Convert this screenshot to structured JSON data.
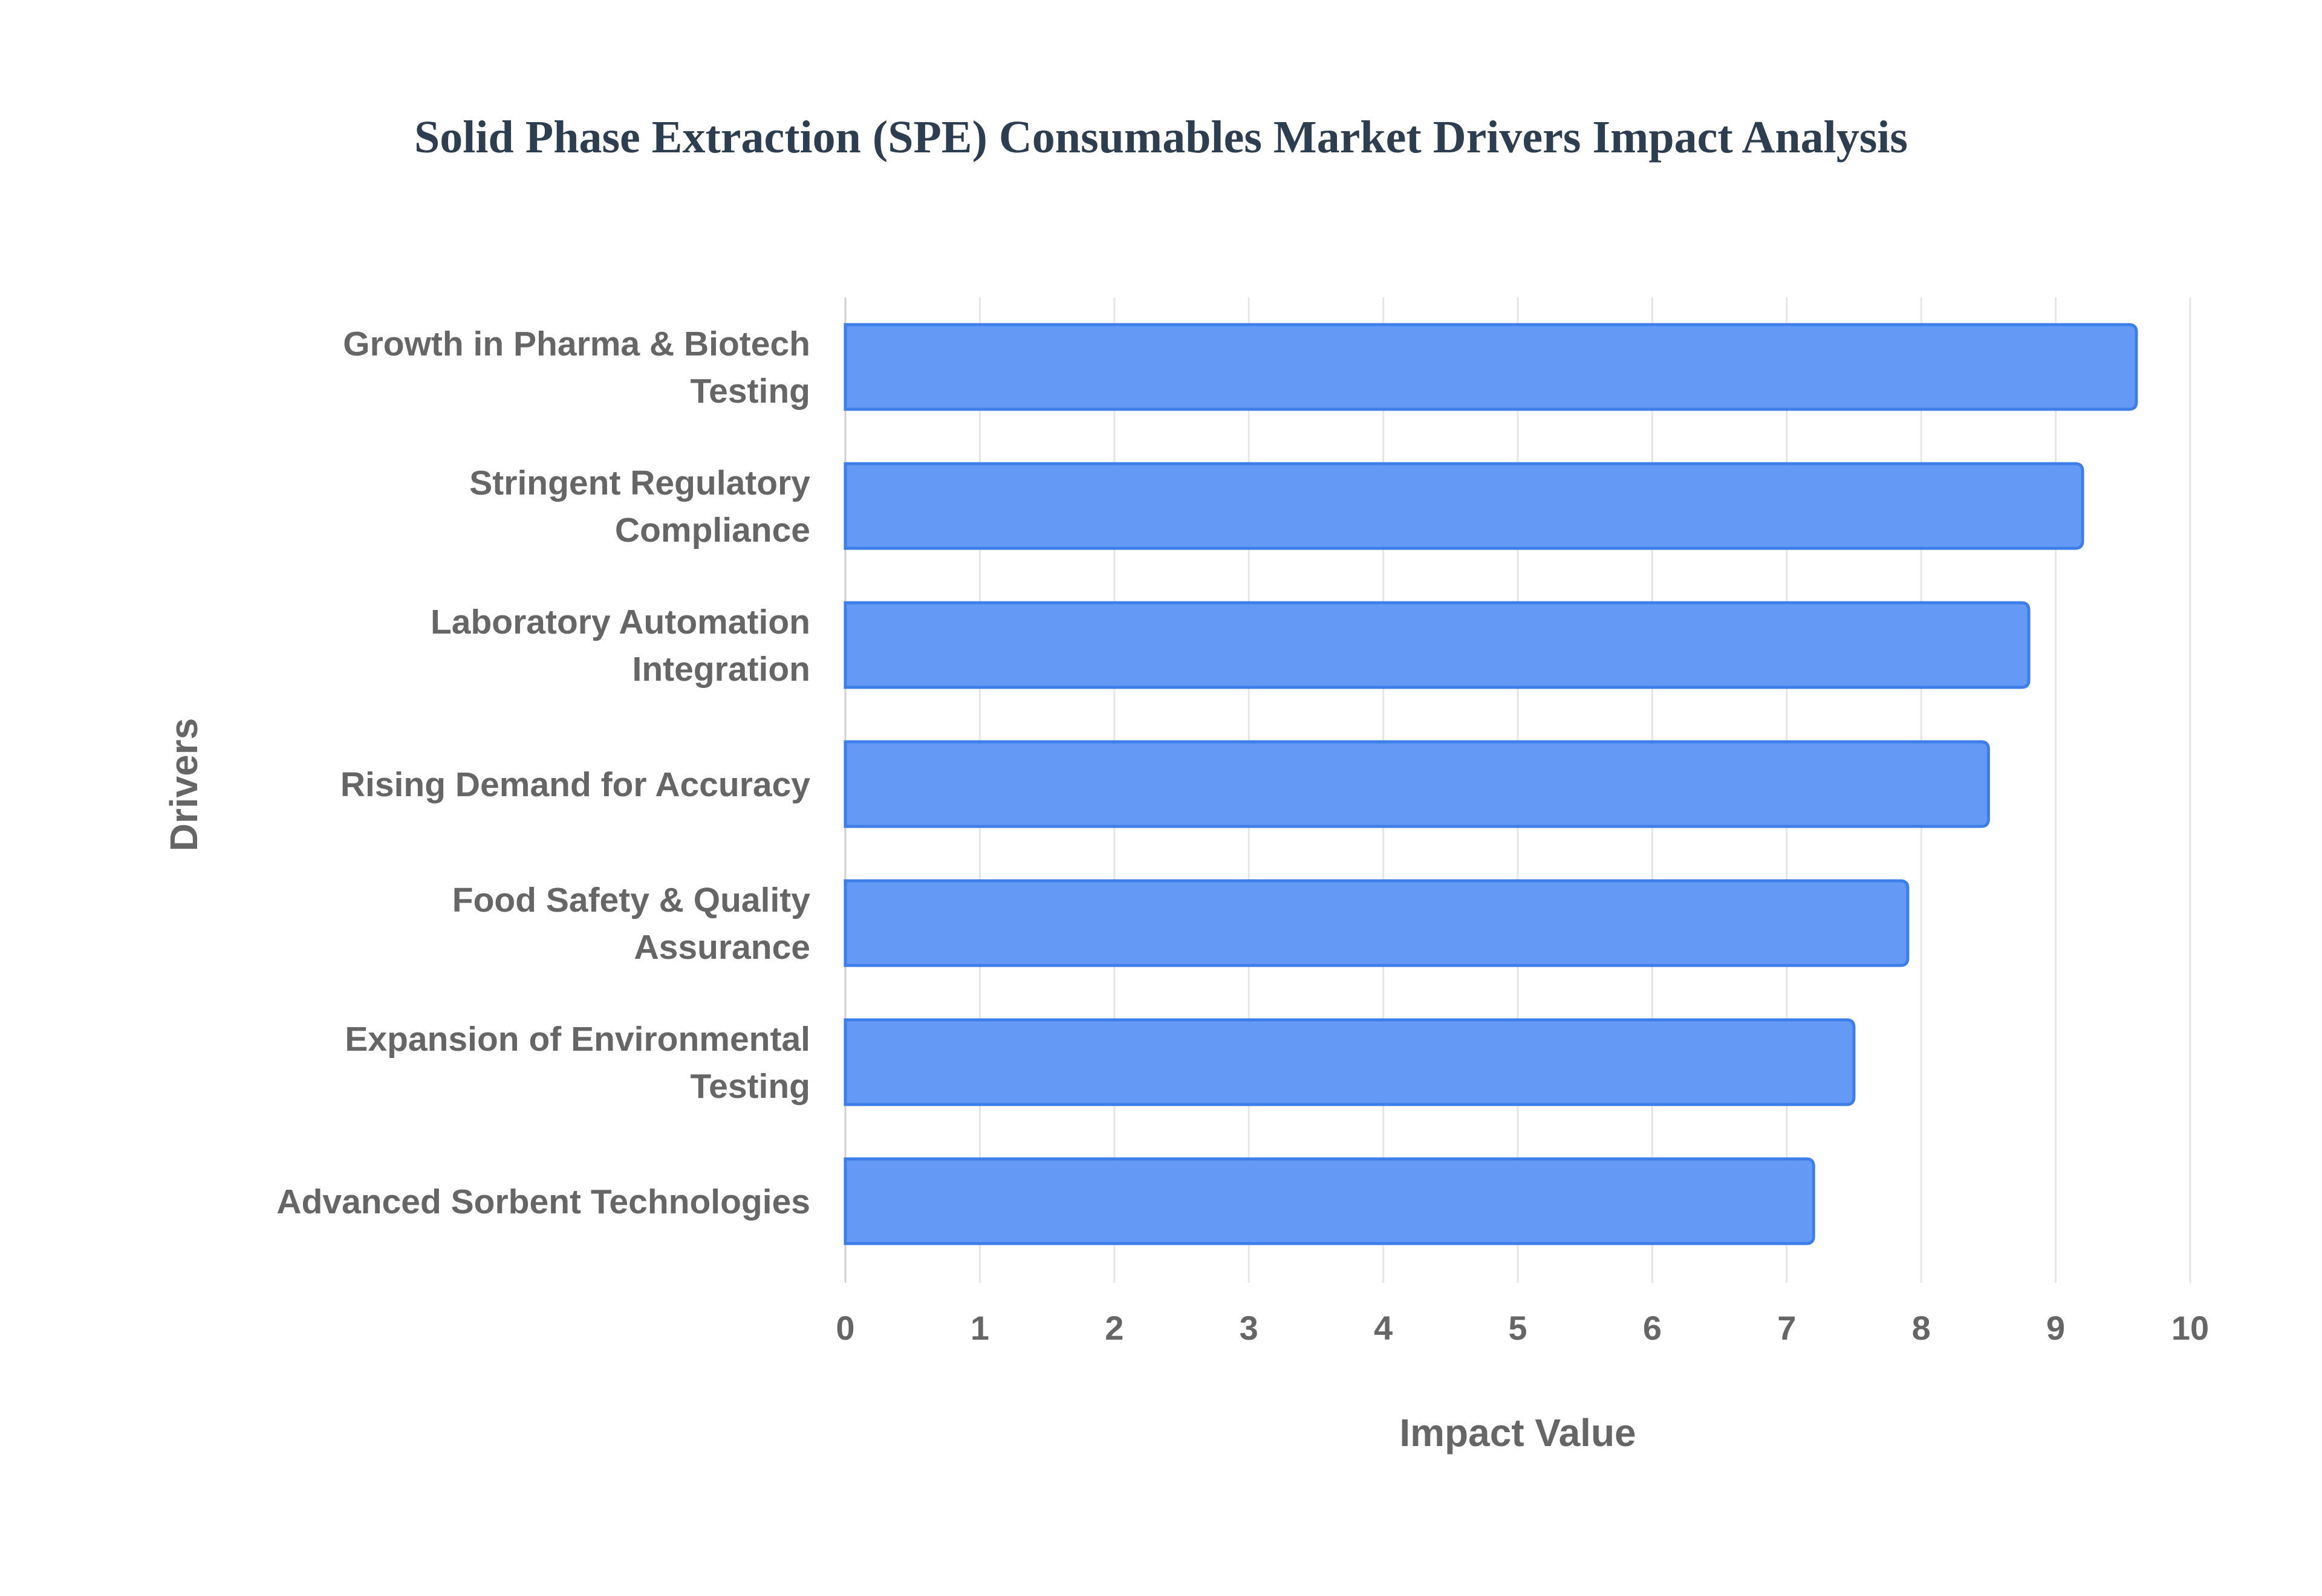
{
  "chart_data": {
    "type": "bar",
    "orientation": "horizontal",
    "title": "Solid Phase Extraction (SPE) Consumables Market Drivers Impact Analysis",
    "xlabel": "Impact Value",
    "ylabel": "Drivers",
    "xlim": [
      0,
      10
    ],
    "xticks": [
      "0",
      "1",
      "2",
      "3",
      "4",
      "5",
      "6",
      "7",
      "8",
      "9",
      "10"
    ],
    "grid": true,
    "categories": [
      [
        "Growth in Pharma & Biotech",
        "Testing"
      ],
      [
        "Stringent Regulatory",
        "Compliance"
      ],
      [
        "Laboratory Automation",
        "Integration"
      ],
      [
        "Rising Demand for Accuracy"
      ],
      [
        "Food Safety & Quality",
        "Assurance"
      ],
      [
        "Expansion of Environmental",
        "Testing"
      ],
      [
        "Advanced Sorbent Technologies"
      ]
    ],
    "values": [
      9.6,
      9.2,
      8.8,
      8.5,
      7.9,
      7.5,
      7.2
    ],
    "colors": {
      "bar_fill": "#6499f5",
      "bar_border": "#3d7ee8",
      "grid": "#e6e6e6",
      "text": "#666666",
      "title": "#2c3e50"
    }
  }
}
